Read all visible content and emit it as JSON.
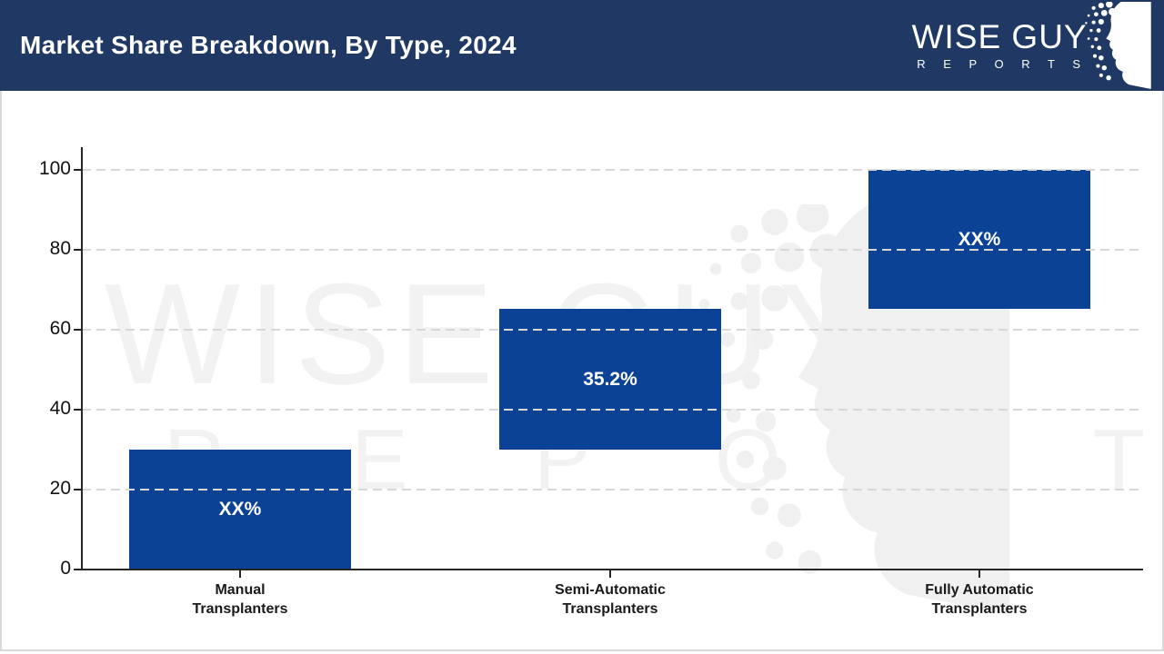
{
  "header": {
    "title": "Market Share Breakdown, By Type, 2024",
    "logo": {
      "name": "WISE GUY",
      "sub": "R E P O R T S"
    }
  },
  "watermark": {
    "line1": "WISE GUY",
    "line2": "R E P O R T S"
  },
  "chart_data": {
    "type": "bar",
    "subtype": "floating-segment (stacked waterfall of market share)",
    "title": "Market Share Breakdown, By Type, 2024",
    "categories": [
      "Manual Transplanters",
      "Semi-Automatic Transplanters",
      "Fully Automatic Transplanters"
    ],
    "bars": [
      {
        "category_line1": "Manual",
        "category_line2": "Transplanters",
        "start": 0,
        "end": 30,
        "label": "XX%"
      },
      {
        "category_line1": "Semi-Automatic",
        "category_line2": "Transplanters",
        "start": 30,
        "end": 65.2,
        "label": "35.2%"
      },
      {
        "category_line1": "Fully Automatic",
        "category_line2": "Transplanters",
        "start": 65.2,
        "end": 100,
        "label": "XX%"
      }
    ],
    "xlabel": "",
    "ylabel": "",
    "ylim": [
      0,
      100
    ],
    "yticks": [
      0,
      20,
      40,
      60,
      80,
      100
    ],
    "grid": "horizontal dashed",
    "legend": "none",
    "bar_color": "#0b4296"
  },
  "colors": {
    "header_bg": "#1f3864",
    "bar": "#0b4296",
    "grid": "#d8d8d8",
    "axis": "#262626",
    "frame": "#d9d9d9",
    "watermark": "#f2f2f2"
  }
}
